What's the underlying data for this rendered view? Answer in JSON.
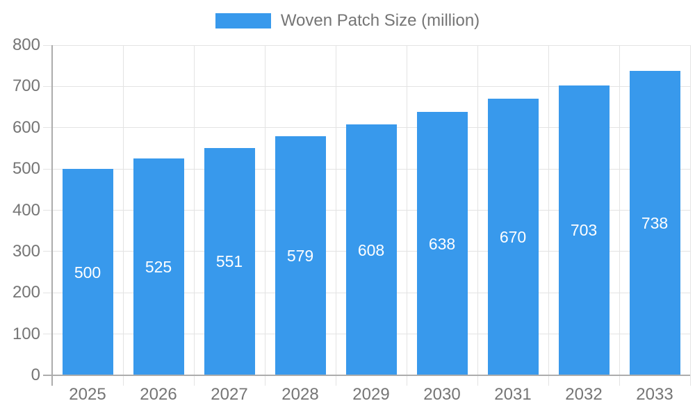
{
  "chart_data": {
    "type": "bar",
    "title": "",
    "xlabel": "",
    "ylabel": "",
    "categories": [
      "2025",
      "2026",
      "2027",
      "2028",
      "2029",
      "2030",
      "2031",
      "2032",
      "2033"
    ],
    "values": [
      500,
      525,
      551,
      579,
      608,
      638,
      670,
      703,
      738
    ],
    "series": [
      {
        "name": "Woven Patch Size (million)",
        "values": [
          500,
          525,
          551,
          579,
          608,
          638,
          670,
          703,
          738
        ]
      }
    ],
    "ylim": [
      0,
      800
    ],
    "y_ticks": [
      0,
      100,
      200,
      300,
      400,
      500,
      600,
      700,
      800
    ],
    "grid": true,
    "bar_value_labels_visible": true,
    "legend": {
      "position": "top",
      "entries": [
        "Woven Patch Size (million)"
      ]
    },
    "colors": {
      "bar": "#3899EC",
      "bar_label": "#FFFFFF",
      "grid_line": "#E3E3E3",
      "axis_line": "#ACACAC",
      "tick_label": "#757575",
      "legend_text": "#757575",
      "background": "#FFFFFF"
    }
  }
}
